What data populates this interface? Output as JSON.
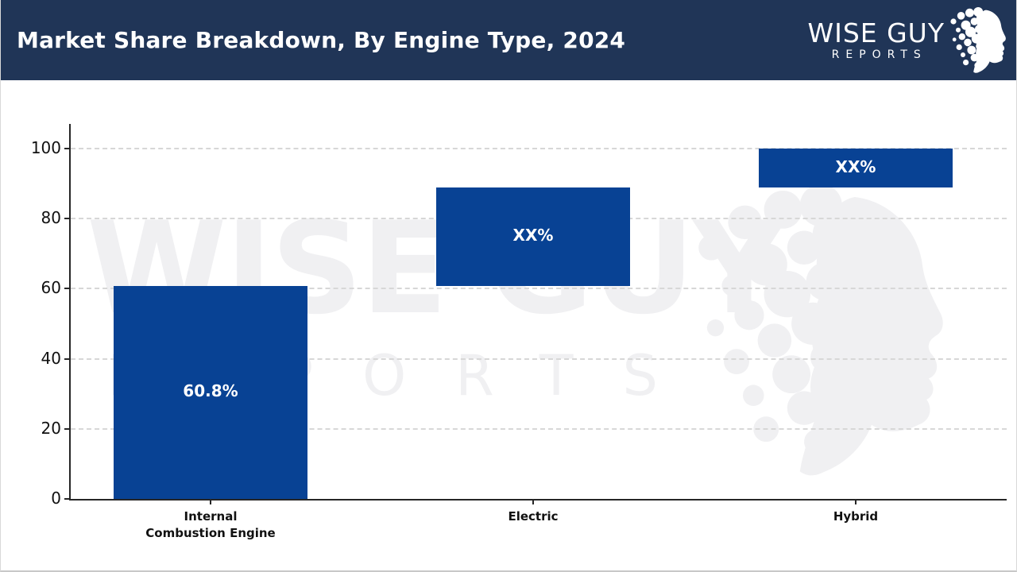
{
  "header": {
    "title": "Market Share Breakdown, By Engine Type, 2024",
    "bg_color": "#203557",
    "logo": {
      "wordmark": "WISE GUY",
      "subtext": "REPORTS"
    }
  },
  "watermark": {
    "line1": "WISE GUY",
    "line2": "REPORTS"
  },
  "chart_data": {
    "type": "bar",
    "subtype": "waterfall",
    "title": "Market Share Breakdown, By Engine Type, 2024",
    "xlabel": "",
    "ylabel": "",
    "categories": [
      "Internal\nCombustion Engine",
      "Electric",
      "Hybrid"
    ],
    "segments": [
      {
        "category": "Internal Combustion Engine",
        "start": 0,
        "end": 60.8,
        "value_label": "60.8%"
      },
      {
        "category": "Electric",
        "start": 60.8,
        "end": 88.8,
        "value_label": "XX%"
      },
      {
        "category": "Hybrid",
        "start": 88.8,
        "end": 100,
        "value_label": "XX%"
      }
    ],
    "y_ticks": [
      0,
      20,
      40,
      60,
      80,
      100
    ],
    "ylim": [
      0,
      107
    ],
    "bar_color": "#084294",
    "grid": "horizontal-dashed",
    "legend": "none"
  }
}
